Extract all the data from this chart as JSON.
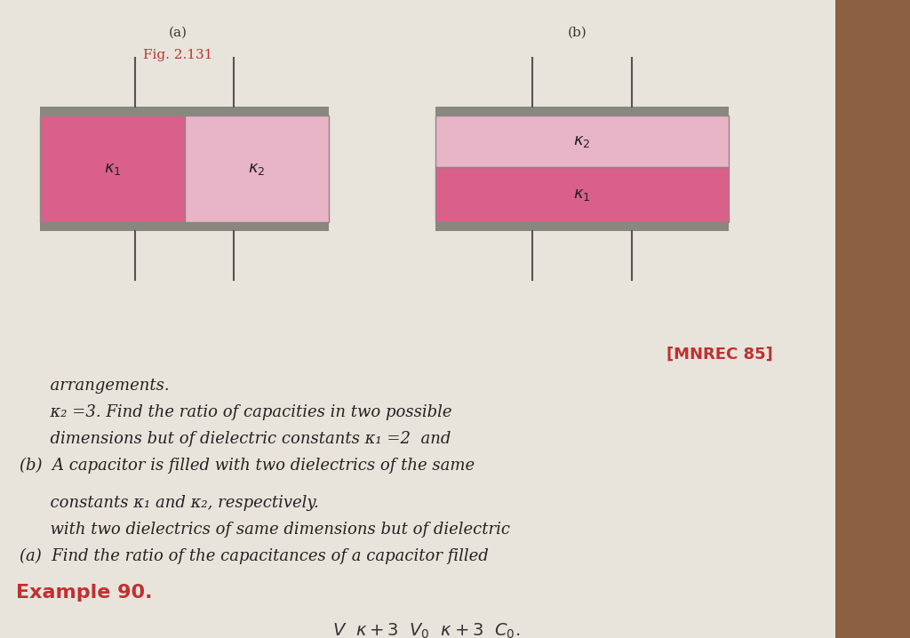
{
  "background_color": "#d8d4cc",
  "paper_color": "#e8e4dc",
  "example_label": "Example 90.",
  "text_a_line1": "(a)  Find the ratio of the capacitances of a capacitor filled",
  "text_a_line2": "      with two dielectrics of same dimensions but of dielectric",
  "text_a_line3": "      constants κ₁ and κ₂, respectively.",
  "text_b_line1": "(b)  A capacitor is filled with two dielectrics of the same",
  "text_b_line2": "      dimensions but of dielectric constants κ₁ =2  and",
  "text_b_line3": "      κ₂ =3. Find the ratio of capacities in two possible",
  "text_b_line4": "      arrangements.",
  "mnrec_label": "[MNREC 85]",
  "fig_label": "Fig. 2.131",
  "label_a": "(a)",
  "label_b": "(b)",
  "d1_left_color": "#d9608a",
  "d1_right_color": "#e8b4c8",
  "d2_top_color": "#d9608a",
  "d2_bottom_color": "#e8b4c8",
  "plate_color": "#888880",
  "lead_color": "#555550"
}
